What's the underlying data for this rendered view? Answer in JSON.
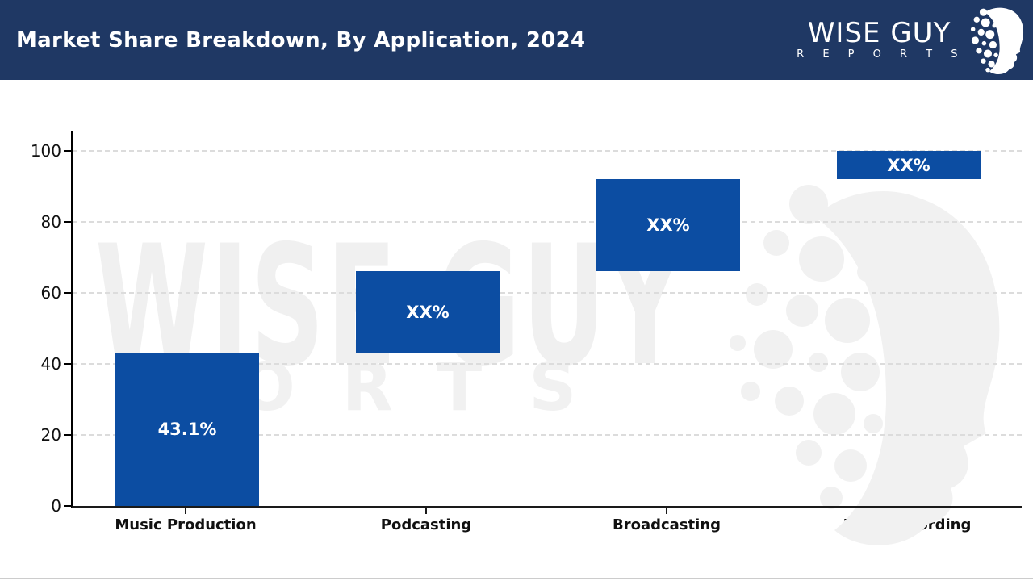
{
  "header": {
    "title": "Market Share Breakdown, By Application, 2024",
    "background_color": "#1f3864",
    "logo": {
      "line1": "WISE GUY",
      "line2": "R E P O R T S"
    }
  },
  "watermark": {
    "big_text": "WISE GUY",
    "small_text": "PORTS"
  },
  "chart_data": {
    "type": "bar",
    "subtype": "floating-waterfall",
    "title": "Market Share Breakdown, By Application, 2024",
    "categories": [
      "Music Production",
      "Podcasting",
      "Broadcasting",
      "Field Recording"
    ],
    "segments": [
      {
        "category": "Music Production",
        "start": 0,
        "end": 43.1,
        "label": "43.1%"
      },
      {
        "category": "Podcasting",
        "start": 43.1,
        "end": 66.1,
        "label": "XX%"
      },
      {
        "category": "Broadcasting",
        "start": 66.1,
        "end": 92.0,
        "label": "XX%"
      },
      {
        "category": "Field Recording",
        "start": 92.0,
        "end": 100.0,
        "label": "XX%"
      }
    ],
    "xlabel": "",
    "ylabel": "",
    "ylim": [
      0,
      100
    ],
    "yticks": [
      0,
      20,
      40,
      60,
      80,
      100
    ],
    "grid": {
      "axis": "y",
      "style": "dashed",
      "color": "#dcdcdc"
    },
    "legend": "none",
    "bar_color": "#0c4da2",
    "bar_label_color": "#ffffff"
  },
  "colors": {
    "header_bg": "#1f3864",
    "bar_blue": "#0c4da2",
    "watermark_gray": "#f0f0f0",
    "axis_black": "#111111",
    "bottom_rule": "#cccccc"
  }
}
